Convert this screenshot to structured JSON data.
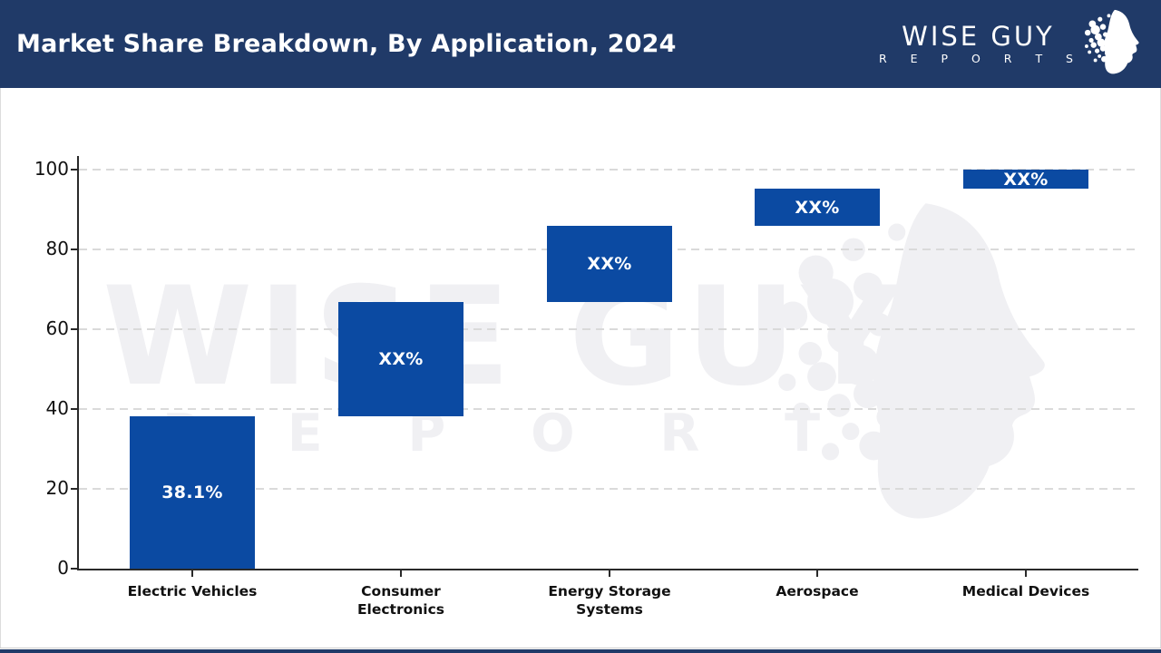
{
  "header": {
    "title": "Market Share Breakdown, By Application, 2024",
    "logo_line1": "WISE GUY",
    "logo_line2": "R E P O R T S"
  },
  "watermark": {
    "line1": "WISE GUY",
    "line2": "R E P O R T S"
  },
  "chart_data": {
    "type": "bar",
    "variant": "waterfall",
    "title": "Market Share Breakdown, By Application, 2024",
    "categories": [
      "Electric Vehicles",
      "Consumer Electronics",
      "Energy Storage Systems",
      "Aerospace",
      "Medical Devices"
    ],
    "series": [
      {
        "name": "Market Share (%)",
        "segments": [
          {
            "category": "Electric Vehicles",
            "start": 0,
            "end": 38.1,
            "label": "38.1%"
          },
          {
            "category": "Consumer Electronics",
            "start": 38.1,
            "end": 66.8,
            "label": "XX%"
          },
          {
            "category": "Energy Storage Systems",
            "start": 66.8,
            "end": 85.9,
            "label": "XX%"
          },
          {
            "category": "Aerospace",
            "start": 85.9,
            "end": 95.2,
            "label": "XX%"
          },
          {
            "category": "Medical Devices",
            "start": 95.2,
            "end": 100,
            "label": "XX%"
          }
        ]
      }
    ],
    "xlabel": "",
    "ylabel": "",
    "ylim": [
      0,
      100
    ],
    "yticks": [
      0,
      20,
      40,
      60,
      80,
      100
    ],
    "grid": "horizontal-dashed",
    "legend": "none",
    "colors": {
      "bar": "#0b4aa2",
      "bar_label": "#ffffff",
      "grid": "#dadada",
      "axis": "#2a2a2a",
      "tick_label": "#111111",
      "header_bg": "#203a68",
      "header_text": "#ffffff",
      "watermark": "#f0f0f3"
    }
  }
}
